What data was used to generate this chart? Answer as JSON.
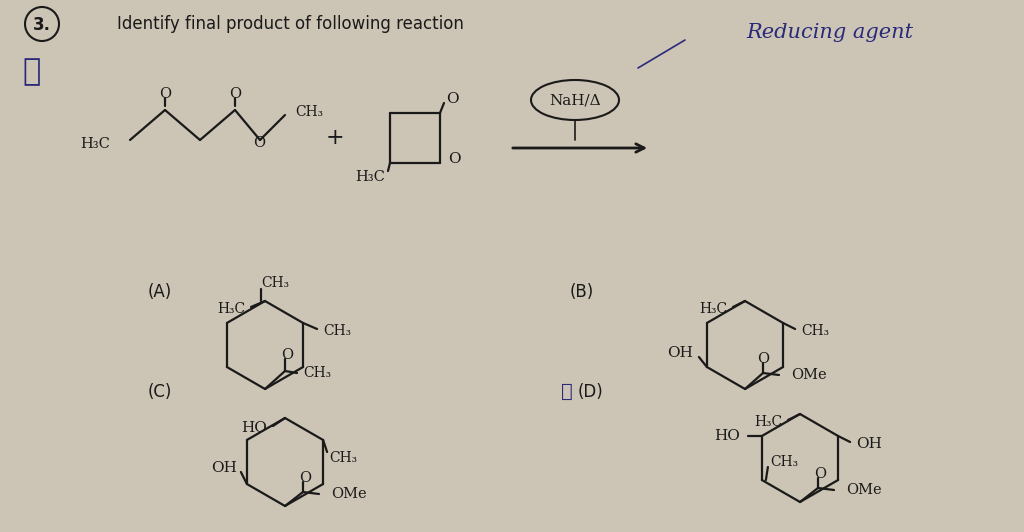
{
  "bg_color": "#ccc4b4",
  "dark": "#1a1a1a",
  "blue_ink": "#2a2a7a",
  "title": "Identify final product of following reaction",
  "reducing_agent": "Reducing agent",
  "nahdelta": "NaH/Δ",
  "label_A": "(A)",
  "label_B": "(B)",
  "label_C": "(C)",
  "label_D": "(D)"
}
